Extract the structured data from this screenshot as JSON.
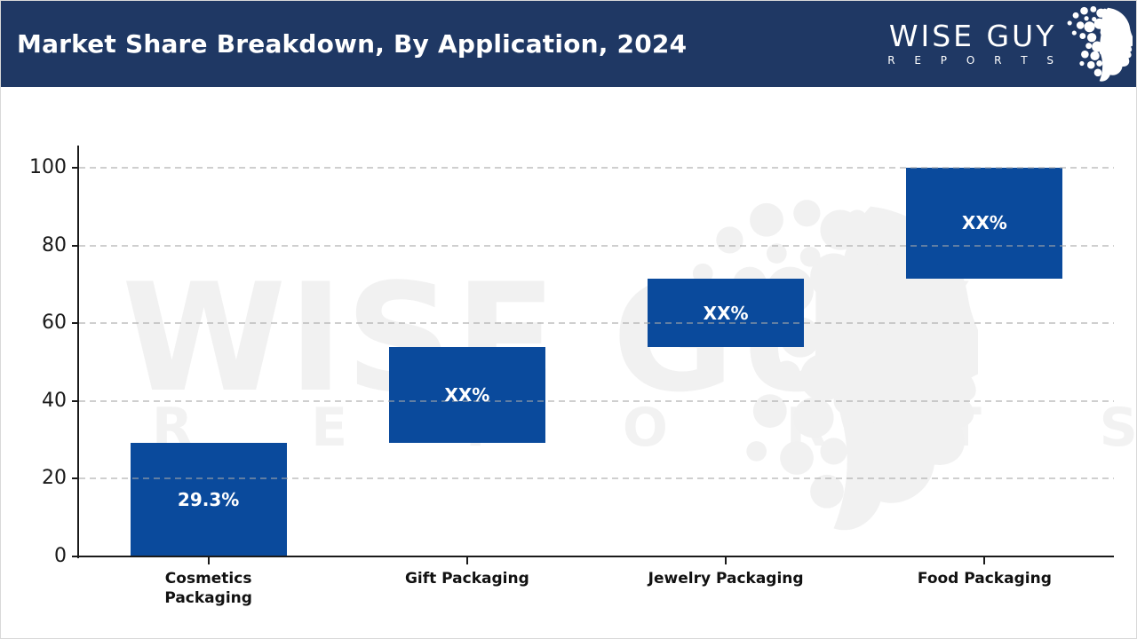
{
  "header": {
    "title": "Market Share Breakdown, By Application, 2024",
    "bg_color": "#1f3864"
  },
  "logo": {
    "line1": "WISE GUY",
    "line2": "R E P O R T S"
  },
  "watermark": {
    "line1": "WISE GUY",
    "line2": "R E P O R T S"
  },
  "chart_data": {
    "type": "bar",
    "subtype": "floating-waterfall",
    "title": "Market Share Breakdown, By Application, 2024",
    "categories": [
      "Cosmetics Packaging",
      "Gift Packaging",
      "Jewelry Packaging",
      "Food Packaging"
    ],
    "category_label_lines": [
      [
        "Cosmetics",
        "Packaging"
      ],
      [
        "Gift Packaging"
      ],
      [
        "Jewelry Packaging"
      ],
      [
        "Food Packaging"
      ]
    ],
    "series": [
      {
        "name": "Market Share",
        "segments": [
          {
            "category": "Cosmetics Packaging",
            "start": 0,
            "end": 29.3,
            "size": 29.3,
            "label": "29.3%"
          },
          {
            "category": "Gift Packaging",
            "start": 29.3,
            "end": 53.8,
            "size": 24.5,
            "label": "XX%"
          },
          {
            "category": "Jewelry Packaging",
            "start": 53.8,
            "end": 71.5,
            "size": 17.7,
            "label": "XX%"
          },
          {
            "category": "Food Packaging",
            "start": 71.5,
            "end": 100,
            "size": 28.5,
            "label": "XX%"
          }
        ]
      }
    ],
    "ylim": [
      0,
      100
    ],
    "yticks": [
      0,
      20,
      40,
      60,
      80,
      100
    ],
    "xlabel": "",
    "ylabel": "",
    "grid": "horizontal-dashed",
    "legend": "none",
    "bar_color": "#0a4a9c",
    "bar_label_color": "#ffffff"
  }
}
